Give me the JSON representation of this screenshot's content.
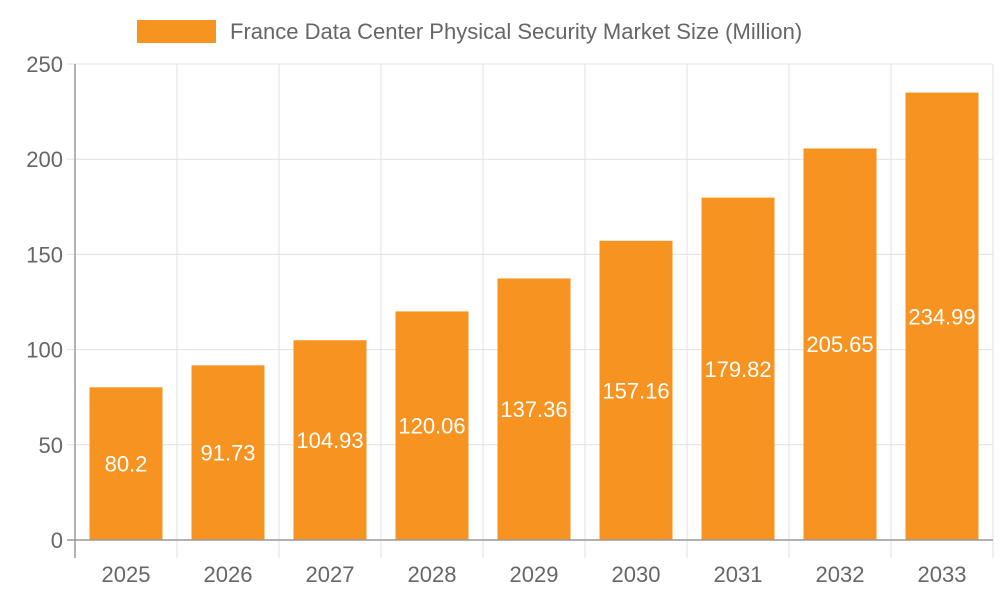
{
  "chart_data": {
    "type": "bar",
    "title": "",
    "xlabel": "",
    "ylabel": "",
    "categories": [
      "2025",
      "2026",
      "2027",
      "2028",
      "2029",
      "2030",
      "2031",
      "2032",
      "2033"
    ],
    "series": [
      {
        "name": "France Data Center Physical Security Market Size (Million)",
        "values": [
          80.2,
          91.73,
          104.93,
          120.06,
          137.36,
          157.16,
          179.82,
          205.65,
          234.99
        ]
      }
    ],
    "ylim": [
      0,
      250
    ],
    "yticks": [
      0,
      50,
      100,
      150,
      200,
      250
    ],
    "grid": true,
    "legend_position": "top",
    "data_labels": true,
    "colors": {
      "bar": "#f79421",
      "label": "#ffffff",
      "grid": "#e0e0e0",
      "axis_text": "#666666"
    }
  }
}
